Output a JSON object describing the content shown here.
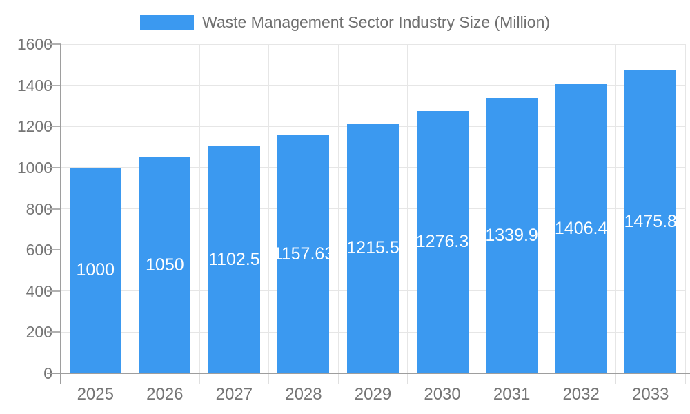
{
  "chart_data": {
    "type": "bar",
    "title": "Waste Management Sector Industry Size (Million)",
    "categories": [
      "2025",
      "2026",
      "2027",
      "2028",
      "2029",
      "2030",
      "2031",
      "2032",
      "2033"
    ],
    "values": [
      1000,
      1050,
      1102.5,
      1157.63,
      1215.5,
      1276.3,
      1339.9,
      1406.4,
      1475.8
    ],
    "bar_labels": [
      "1000",
      "1050",
      "1102.5",
      "1157.63",
      "1215.5",
      "1276.3",
      "1339.9",
      "1406.4",
      "1475.8"
    ],
    "xlabel": "",
    "ylabel": "",
    "ylim": [
      0,
      1600
    ],
    "yticks": [
      0,
      200,
      400,
      600,
      800,
      1000,
      1200,
      1400,
      1600
    ],
    "grid": true,
    "legend_position": "top-center"
  },
  "colors": {
    "bar": "#3b99f0",
    "bar_label": "#ffffff",
    "grid": "#e6e6e6",
    "axis": "#9e9e9e",
    "tick": "#b0b0b0",
    "tick_below": "#e0e0e0",
    "axis_label": "#757575",
    "title": "#6f6f6f",
    "background": "#ffffff"
  }
}
